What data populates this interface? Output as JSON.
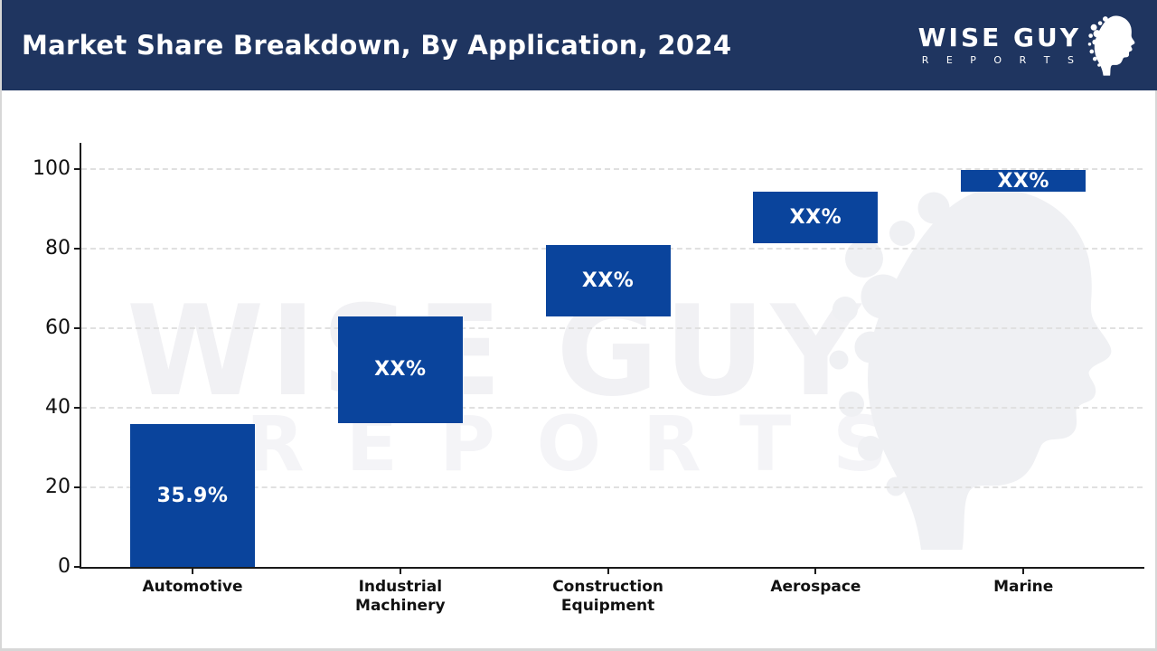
{
  "header": {
    "title": "Market Share Breakdown, By Application, 2024",
    "logo": {
      "line1": "WISE GUY",
      "line2": "R E P O R T S"
    }
  },
  "watermark": {
    "line1": "WISE GUY",
    "line2": "REPORTS"
  },
  "colors": {
    "header_bg": "#1f3560",
    "bar_blue": "#0a449c",
    "bar_label": "#ffffff",
    "gridline": "#e0e0e0",
    "axis": "#1a1a1a",
    "watermark": "#f1f1f4"
  },
  "chart_data": {
    "type": "bar",
    "subtype": "floating-waterfall",
    "title": "Market Share Breakdown, By Application, 2024",
    "categories": [
      [
        "Automotive"
      ],
      [
        "Industrial",
        "Machinery"
      ],
      [
        "Construction",
        "Equipment"
      ],
      [
        "Aerospace"
      ],
      [
        "Marine"
      ]
    ],
    "segments": [
      {
        "category": "Automotive",
        "start": 0,
        "end": 35.9,
        "label": "35.9%"
      },
      {
        "category": "Industrial Machinery",
        "start": 36.1,
        "end": 63.0,
        "label": "XX%"
      },
      {
        "category": "Construction Equipment",
        "start": 63.0,
        "end": 80.9,
        "label": "XX%"
      },
      {
        "category": "Aerospace",
        "start": 81.4,
        "end": 94.3,
        "label": "XX%"
      },
      {
        "category": "Marine",
        "start": 94.3,
        "end": 99.7,
        "label": "XX%"
      }
    ],
    "bar_color": "#0a449c",
    "value_label_color": "#ffffff",
    "xlabel": "",
    "ylabel": "",
    "yticks": [
      0,
      20,
      40,
      60,
      80,
      100
    ],
    "ylim": [
      0,
      106
    ],
    "grid": {
      "axis": "y",
      "style": "dashed"
    },
    "legend": "none"
  }
}
